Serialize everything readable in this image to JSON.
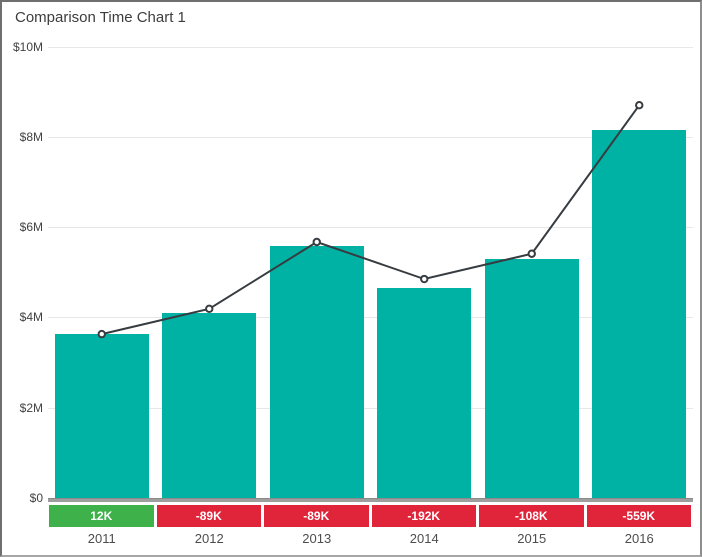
{
  "title": "Comparison Time Chart 1",
  "colors": {
    "bar": "#00b2a3",
    "line": "#373c41",
    "marker_fill": "#ffffff",
    "badge_positive": "#3eb14b",
    "badge_negative": "#e0243a",
    "badge_text": "#ffffff",
    "gridline": "#e7e7e7",
    "axis_line": "#9e9e9e",
    "axis_text": "#424242",
    "year_text": "#4d4d4d",
    "title_text": "#3d3d3d"
  },
  "chart_data": {
    "type": "bar+line combo",
    "title": "Comparison Time Chart 1",
    "categories": [
      "2011",
      "2012",
      "2013",
      "2014",
      "2015",
      "2016"
    ],
    "series": [
      {
        "name": "bar-series",
        "type": "bar",
        "unit": "USD millions",
        "values": [
          3.64,
          4.1,
          5.58,
          4.66,
          5.3,
          8.14
        ]
      },
      {
        "name": "line-series",
        "type": "line",
        "unit": "USD millions",
        "values": [
          3.63,
          4.19,
          5.67,
          4.85,
          5.41,
          8.7
        ]
      }
    ],
    "delta_badges": [
      {
        "year": "2011",
        "label": "12K",
        "positive": true
      },
      {
        "year": "2012",
        "label": "-89K",
        "positive": false
      },
      {
        "year": "2013",
        "label": "-89K",
        "positive": false
      },
      {
        "year": "2014",
        "label": "-192K",
        "positive": false
      },
      {
        "year": "2015",
        "label": "-108K",
        "positive": false
      },
      {
        "year": "2016",
        "label": "-559K",
        "positive": false
      }
    ],
    "y_axis": {
      "min": 0,
      "max": 10,
      "tick_step": 2,
      "tick_labels": [
        "$0",
        "$2M",
        "$4M",
        "$6M",
        "$8M",
        "$10M"
      ]
    },
    "legend": "none",
    "grid": "horizontal"
  }
}
